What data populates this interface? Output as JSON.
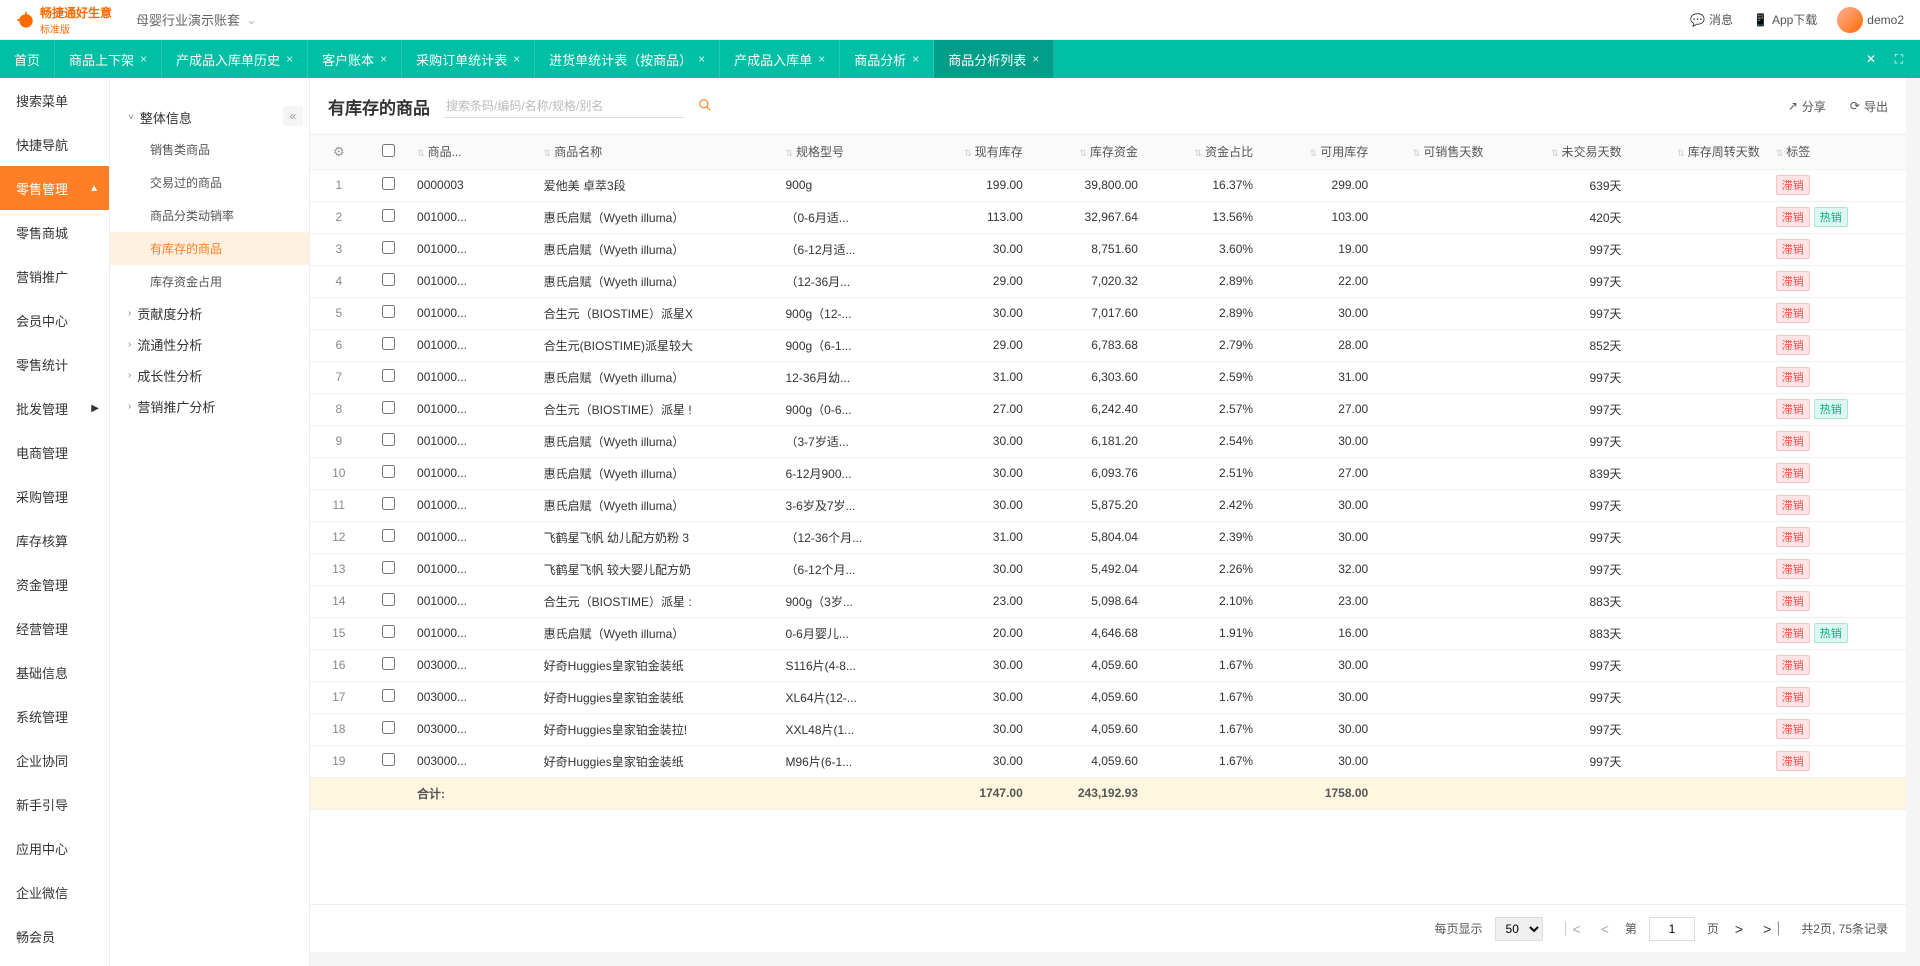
{
  "brand": {
    "name": "畅捷通好生意",
    "tier": "标准版"
  },
  "topbar": {
    "account_label": "母婴行业演示账套",
    "msg_label": "消息",
    "app_label": "App下载",
    "user_label": "demo2"
  },
  "tabs": [
    {
      "label": "首页",
      "closable": false
    },
    {
      "label": "商品上下架",
      "closable": true
    },
    {
      "label": "产成品入库单历史",
      "closable": true
    },
    {
      "label": "客户账本",
      "closable": true
    },
    {
      "label": "采购订单统计表",
      "closable": true
    },
    {
      "label": "进货单统计表（按商品）",
      "closable": true
    },
    {
      "label": "产成品入库单",
      "closable": true
    },
    {
      "label": "商品分析",
      "closable": true
    },
    {
      "label": "商品分析列表",
      "closable": true,
      "active": true
    }
  ],
  "leftnav": [
    {
      "label": "搜索菜单"
    },
    {
      "label": "快捷导航"
    },
    {
      "label": "零售管理",
      "active": true,
      "caret": "▲"
    },
    {
      "label": "零售商城"
    },
    {
      "label": "营销推广"
    },
    {
      "label": "会员中心"
    },
    {
      "label": "零售统计"
    },
    {
      "label": "批发管理",
      "caret": "▶"
    },
    {
      "label": "电商管理"
    },
    {
      "label": "采购管理"
    },
    {
      "label": "库存核算"
    },
    {
      "label": "资金管理"
    },
    {
      "label": "经营管理"
    },
    {
      "label": "基础信息"
    },
    {
      "label": "系统管理"
    },
    {
      "label": "企业协同"
    },
    {
      "label": "新手引导"
    },
    {
      "label": "应用中心"
    },
    {
      "label": "企业微信"
    },
    {
      "label": "畅会员"
    }
  ],
  "sidepanel": {
    "groups": [
      {
        "title": "整体信息",
        "open": true,
        "items": [
          {
            "label": "销售类商品"
          },
          {
            "label": "交易过的商品"
          },
          {
            "label": "商品分类动销率"
          },
          {
            "label": "有库存的商品",
            "active": true
          },
          {
            "label": "库存资金占用"
          }
        ]
      },
      {
        "title": "贡献度分析",
        "open": false,
        "items": []
      },
      {
        "title": "流通性分析",
        "open": false,
        "items": []
      },
      {
        "title": "成长性分析",
        "open": false,
        "items": []
      },
      {
        "title": "营销推广分析",
        "open": false,
        "items": []
      }
    ]
  },
  "main": {
    "title": "有库存的商品",
    "search_placeholder": "搜索条码/编码/名称/规格/别名",
    "share_label": "分享",
    "export_label": "导出"
  },
  "columns": [
    {
      "key": "idx",
      "label": ""
    },
    {
      "key": "chk",
      "label": ""
    },
    {
      "key": "code",
      "label": "商品..."
    },
    {
      "key": "name",
      "label": "商品名称"
    },
    {
      "key": "spec",
      "label": "规格型号"
    },
    {
      "key": "stock",
      "label": "现有库存"
    },
    {
      "key": "fund",
      "label": "库存资金"
    },
    {
      "key": "pct",
      "label": "资金占比"
    },
    {
      "key": "avail",
      "label": "可用库存"
    },
    {
      "key": "sell",
      "label": "可销售天数"
    },
    {
      "key": "notx",
      "label": "未交易天数"
    },
    {
      "key": "turn",
      "label": "库存周转天数"
    },
    {
      "key": "tags",
      "label": "标签"
    }
  ],
  "tag_labels": {
    "slow": "滞销",
    "hot": "热销"
  },
  "rows": [
    [
      "1",
      "0000003",
      "爱他美 卓萃3段",
      "900g",
      "199.00",
      "39,800.00",
      "16.37%",
      "299.00",
      "",
      "639天",
      "",
      [
        "slow"
      ]
    ],
    [
      "2",
      "001000...",
      "惠氏启赋（Wyeth illuma）",
      "（0-6月适...",
      "113.00",
      "32,967.64",
      "13.56%",
      "103.00",
      "",
      "420天",
      "",
      [
        "slow",
        "hot"
      ]
    ],
    [
      "3",
      "001000...",
      "惠氏启赋（Wyeth illuma）",
      "（6-12月适...",
      "30.00",
      "8,751.60",
      "3.60%",
      "19.00",
      "",
      "997天",
      "",
      [
        "slow"
      ]
    ],
    [
      "4",
      "001000...",
      "惠氏启赋（Wyeth illuma）",
      "（12-36月...",
      "29.00",
      "7,020.32",
      "2.89%",
      "22.00",
      "",
      "997天",
      "",
      [
        "slow"
      ]
    ],
    [
      "5",
      "001000...",
      "合生元（BIOSTIME）派星X",
      "900g（12-...",
      "30.00",
      "7,017.60",
      "2.89%",
      "30.00",
      "",
      "997天",
      "",
      [
        "slow"
      ]
    ],
    [
      "6",
      "001000...",
      "合生元(BIOSTIME)派星较大",
      "900g（6-1...",
      "29.00",
      "6,783.68",
      "2.79%",
      "28.00",
      "",
      "852天",
      "",
      [
        "slow"
      ]
    ],
    [
      "7",
      "001000...",
      "惠氏启赋（Wyeth illuma）",
      "12-36月幼...",
      "31.00",
      "6,303.60",
      "2.59%",
      "31.00",
      "",
      "997天",
      "",
      [
        "slow"
      ]
    ],
    [
      "8",
      "001000...",
      "合生元（BIOSTIME）派星 !",
      "900g（0-6...",
      "27.00",
      "6,242.40",
      "2.57%",
      "27.00",
      "",
      "997天",
      "",
      [
        "slow",
        "hot"
      ]
    ],
    [
      "9",
      "001000...",
      "惠氏启赋（Wyeth illuma）",
      "（3-7岁适...",
      "30.00",
      "6,181.20",
      "2.54%",
      "30.00",
      "",
      "997天",
      "",
      [
        "slow"
      ]
    ],
    [
      "10",
      "001000...",
      "惠氏启赋（Wyeth illuma）",
      "6-12月900...",
      "30.00",
      "6,093.76",
      "2.51%",
      "27.00",
      "",
      "839天",
      "",
      [
        "slow"
      ]
    ],
    [
      "11",
      "001000...",
      "惠氏启赋（Wyeth illuma）",
      "3-6岁及7岁...",
      "30.00",
      "5,875.20",
      "2.42%",
      "30.00",
      "",
      "997天",
      "",
      [
        "slow"
      ]
    ],
    [
      "12",
      "001000...",
      "飞鹤星飞帆 幼儿配方奶粉 3",
      "（12-36个月...",
      "31.00",
      "5,804.04",
      "2.39%",
      "30.00",
      "",
      "997天",
      "",
      [
        "slow"
      ]
    ],
    [
      "13",
      "001000...",
      "飞鹤星飞帆 较大婴儿配方奶",
      "（6-12个月...",
      "30.00",
      "5,492.04",
      "2.26%",
      "32.00",
      "",
      "997天",
      "",
      [
        "slow"
      ]
    ],
    [
      "14",
      "001000...",
      "合生元（BIOSTIME）派星 :",
      "900g（3岁...",
      "23.00",
      "5,098.64",
      "2.10%",
      "23.00",
      "",
      "883天",
      "",
      [
        "slow"
      ]
    ],
    [
      "15",
      "001000...",
      "惠氏启赋（Wyeth illuma）",
      "0-6月婴儿...",
      "20.00",
      "4,646.68",
      "1.91%",
      "16.00",
      "",
      "883天",
      "",
      [
        "slow",
        "hot"
      ]
    ],
    [
      "16",
      "003000...",
      "好奇Huggies皇家铂金装纸",
      "S116片(4-8...",
      "30.00",
      "4,059.60",
      "1.67%",
      "30.00",
      "",
      "997天",
      "",
      [
        "slow"
      ]
    ],
    [
      "17",
      "003000...",
      "好奇Huggies皇家铂金装纸",
      "XL64片(12-...",
      "30.00",
      "4,059.60",
      "1.67%",
      "30.00",
      "",
      "997天",
      "",
      [
        "slow"
      ]
    ],
    [
      "18",
      "003000...",
      "好奇Huggies皇家铂金装拉!",
      "XXL48片(1...",
      "30.00",
      "4,059.60",
      "1.67%",
      "30.00",
      "",
      "997天",
      "",
      [
        "slow"
      ]
    ],
    [
      "19",
      "003000...",
      "好奇Huggies皇家铂金装纸",
      "M96片(6-1...",
      "30.00",
      "4,059.60",
      "1.67%",
      "30.00",
      "",
      "997天",
      "",
      [
        "slow"
      ]
    ]
  ],
  "totals": {
    "label": "合计:",
    "stock": "1747.00",
    "fund": "243,192.93",
    "avail": "1758.00"
  },
  "pager": {
    "per_page_label": "每页显示",
    "page_size": "50",
    "page_word": "第",
    "page": "1",
    "page_unit": "页",
    "summary": "共2页, 75条记录"
  },
  "colors": {
    "accent_teal": "#00bfa5",
    "accent_teal_dark": "#009e88",
    "accent_orange": "#ff7f27",
    "tag_slow_bg": "#ffe5e5",
    "tag_slow_fg": "#ff4d4f",
    "tag_hot_bg": "#e0f7f1",
    "tag_hot_fg": "#00b386",
    "total_row_bg": "#fff6e0"
  }
}
